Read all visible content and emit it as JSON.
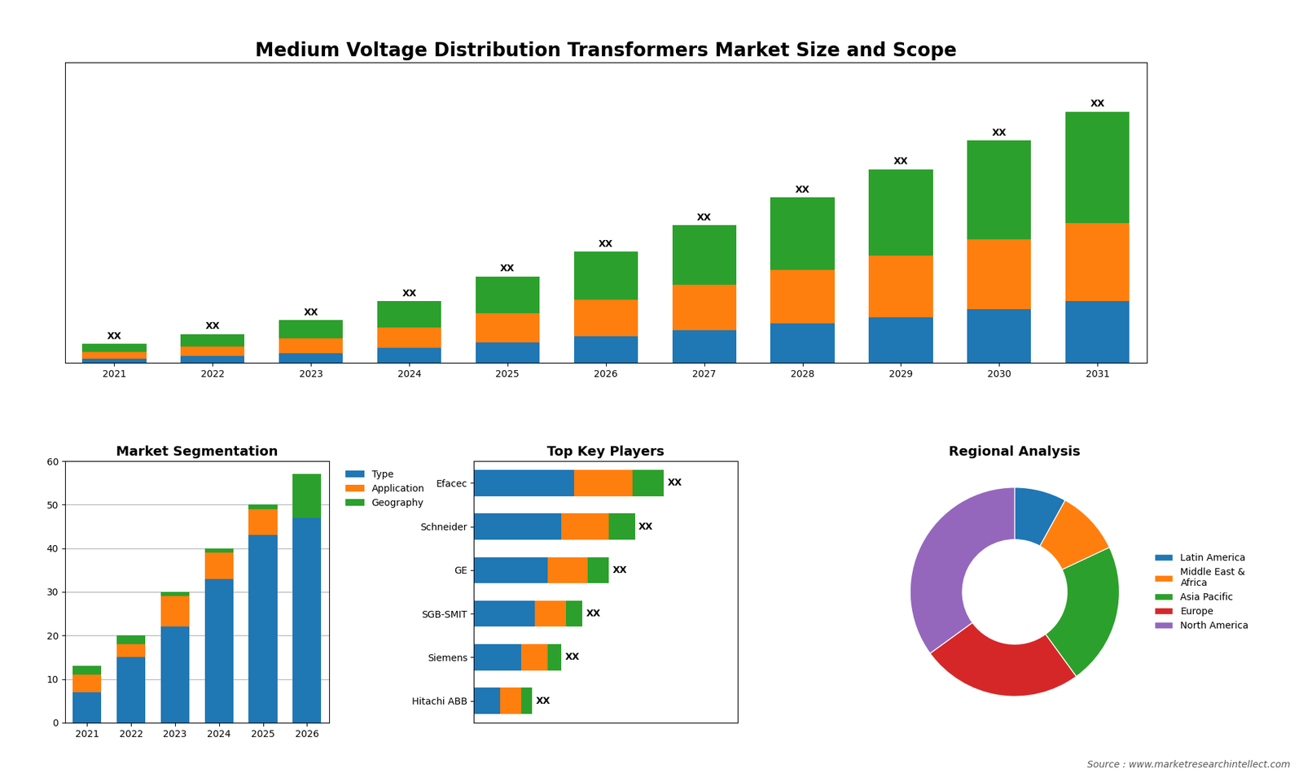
{
  "chart_data": [
    {
      "type": "bar",
      "stacked": true,
      "title": "Medium Voltage Distribution Transformers Market Size and Scope",
      "categories": [
        "2021",
        "2022",
        "2023",
        "2024",
        "2025",
        "2026",
        "2027",
        "2028",
        "2029",
        "2030",
        "2031"
      ],
      "series": [
        {
          "values": [
            0.5,
            0.8,
            1.2,
            1.8,
            2.5,
            3.2,
            4.0,
            4.8,
            5.5,
            6.5,
            7.5
          ]
        },
        {
          "values": [
            0.8,
            1.2,
            1.8,
            2.5,
            3.5,
            4.5,
            5.5,
            6.5,
            7.5,
            8.5,
            9.5
          ]
        },
        {
          "values": [
            1.0,
            1.5,
            2.2,
            3.2,
            4.5,
            5.8,
            7.2,
            8.8,
            10.5,
            12.0,
            13.5
          ],
          "value_labels": [
            "XX",
            "XX",
            "XX",
            "XX",
            "XX",
            "XX",
            "XX",
            "XX",
            "XX",
            "XX",
            "XX"
          ]
        }
      ],
      "ylim": [
        0,
        36.5
      ],
      "tick_labels": "x"
    },
    {
      "type": "bar",
      "stacked": true,
      "title": "Market Segmentation",
      "categories": [
        "2021",
        "2022",
        "2023",
        "2024",
        "2025",
        "2026"
      ],
      "series": [
        {
          "name": "Type",
          "values": [
            7,
            15,
            22,
            33,
            43,
            47
          ]
        },
        {
          "name": "Application",
          "values": [
            4,
            3,
            7,
            6,
            6,
            0
          ]
        },
        {
          "name": "Geography",
          "values": [
            2,
            2,
            1,
            1,
            1,
            10
          ]
        }
      ],
      "ylim": [
        0,
        60
      ],
      "yticks": [
        0,
        10,
        20,
        30,
        40,
        50,
        60
      ],
      "grid": true,
      "legend": "upper left"
    },
    {
      "type": "bar",
      "stacked": true,
      "orientation": "horizontal",
      "title": "Top Key Players",
      "categories": [
        "Efacec",
        "Schneider",
        "GE",
        "SGB-SMIT",
        "Siemens",
        "Hitachi ABB"
      ],
      "series": [
        {
          "values": [
            0.38,
            0.33,
            0.28,
            0.23,
            0.18,
            0.1
          ]
        },
        {
          "values": [
            0.22,
            0.18,
            0.15,
            0.12,
            0.1,
            0.08
          ]
        },
        {
          "values": [
            0.12,
            0.1,
            0.08,
            0.06,
            0.05,
            0.04
          ],
          "value_labels": [
            "XX",
            "XX",
            "XX",
            "XX",
            "XX",
            "XX"
          ]
        }
      ],
      "xlim": [
        0,
        1.0
      ],
      "tick_labels": "y"
    },
    {
      "type": "pie",
      "title": "Regional Analysis",
      "categories": [
        "Latin America",
        "Middle East &\nAfrica",
        "Asia Pacific",
        "Europe",
        "North America"
      ],
      "values": [
        8,
        10,
        22,
        25,
        35
      ],
      "legend": "center left",
      "annotations": [
        "Source : www.marketresearchintellect.com"
      ]
    }
  ]
}
